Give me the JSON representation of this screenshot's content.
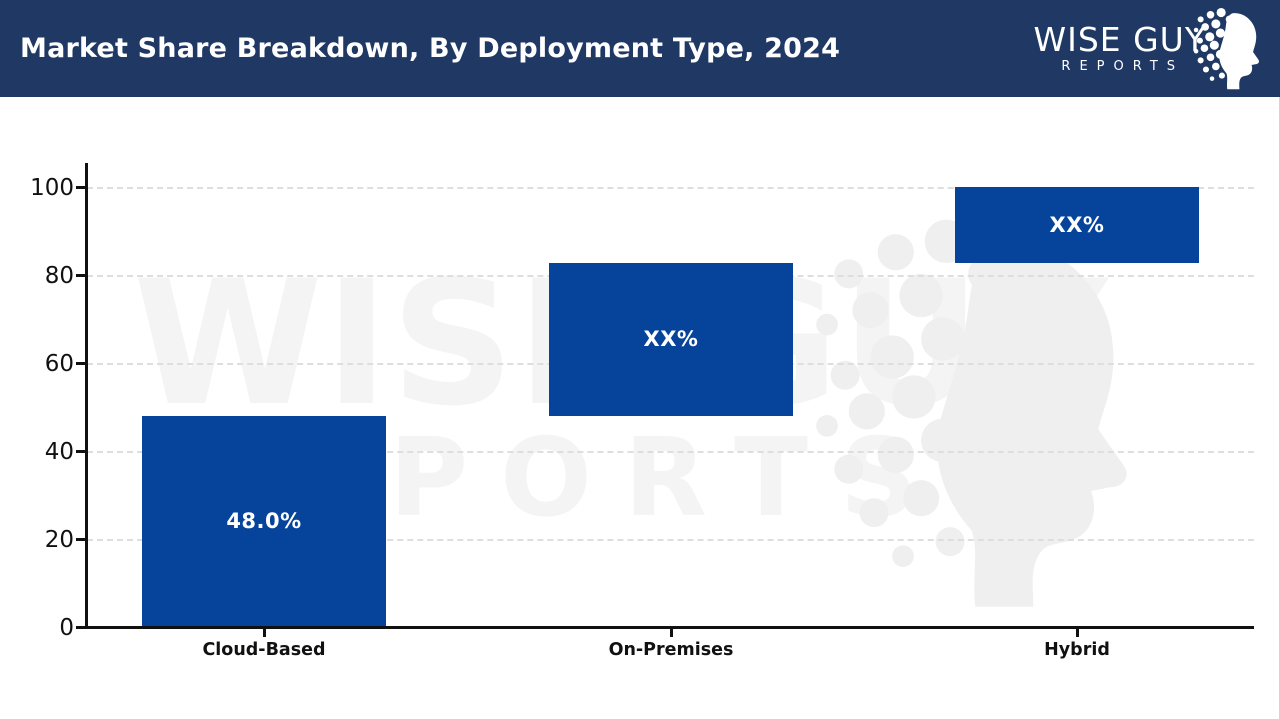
{
  "header": {
    "title": "Market Share Breakdown, By Deployment Type, 2024",
    "background": "#1f3864",
    "logo": {
      "line1": "WISE GUY",
      "line2": "REPORTS"
    }
  },
  "watermark": {
    "line1": "WISE GUY",
    "line2": "REPORTS"
  },
  "chart_data": {
    "type": "bar",
    "variant": "waterfall",
    "title": "Market Share Breakdown, By Deployment Type, 2024",
    "categories": [
      "Cloud-Based",
      "On-Premises",
      "Hybrid"
    ],
    "segments": [
      {
        "category": "Cloud-Based",
        "start": 0,
        "end": 48,
        "value_label": "48.0%"
      },
      {
        "category": "On-Premises",
        "start": 48,
        "end": 82.8,
        "value_label": "XX%"
      },
      {
        "category": "Hybrid",
        "start": 82.8,
        "end": 100,
        "value_label": "XX%"
      }
    ],
    "ylim": [
      0,
      100
    ],
    "yticks": [
      0,
      20,
      40,
      60,
      80,
      100
    ],
    "xlabel": "",
    "ylabel": "",
    "legend": "none",
    "grid": {
      "horizontal": true,
      "style": "dashed",
      "color": "#dedede"
    },
    "bar_color": "#06449c",
    "bar_label_color": "#ffffff",
    "axis_color": "#111111"
  }
}
